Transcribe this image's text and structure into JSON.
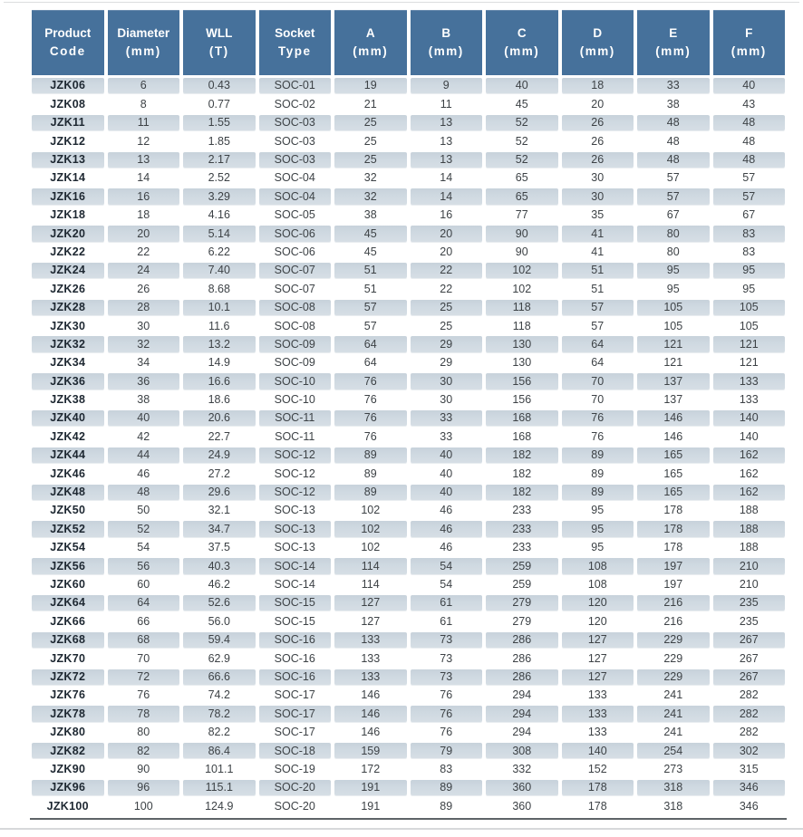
{
  "colors": {
    "header_bg": "#46719b",
    "header_text": "#ffffff",
    "row_shaded": "#cfd9e1",
    "body_text": "#3d4246",
    "code_text": "#1d2731"
  },
  "table": {
    "column_keys": [
      "product_code",
      "diameter",
      "wll",
      "socket_type",
      "a",
      "b",
      "c",
      "d",
      "e",
      "f"
    ],
    "columns": [
      {
        "line1": "Product",
        "line2": "Code"
      },
      {
        "line1": "Diameter",
        "line2": "(mm)"
      },
      {
        "line1": "WLL",
        "line2": "(T)"
      },
      {
        "line1": "Socket",
        "line2": "Type"
      },
      {
        "line1": "A",
        "line2": "(mm)"
      },
      {
        "line1": "B",
        "line2": "(mm)"
      },
      {
        "line1": "C",
        "line2": "(mm)"
      },
      {
        "line1": "D",
        "line2": "(mm)"
      },
      {
        "line1": "E",
        "line2": "(mm)"
      },
      {
        "line1": "F",
        "line2": "(mm)"
      }
    ],
    "rows": [
      [
        "JZK06",
        "6",
        "0.43",
        "SOC-01",
        "19",
        "9",
        "40",
        "18",
        "33",
        "40"
      ],
      [
        "JZK08",
        "8",
        "0.77",
        "SOC-02",
        "21",
        "11",
        "45",
        "20",
        "38",
        "43"
      ],
      [
        "JZK11",
        "11",
        "1.55",
        "SOC-03",
        "25",
        "13",
        "52",
        "26",
        "48",
        "48"
      ],
      [
        "JZK12",
        "12",
        "1.85",
        "SOC-03",
        "25",
        "13",
        "52",
        "26",
        "48",
        "48"
      ],
      [
        "JZK13",
        "13",
        "2.17",
        "SOC-03",
        "25",
        "13",
        "52",
        "26",
        "48",
        "48"
      ],
      [
        "JZK14",
        "14",
        "2.52",
        "SOC-04",
        "32",
        "14",
        "65",
        "30",
        "57",
        "57"
      ],
      [
        "JZK16",
        "16",
        "3.29",
        "SOC-04",
        "32",
        "14",
        "65",
        "30",
        "57",
        "57"
      ],
      [
        "JZK18",
        "18",
        "4.16",
        "SOC-05",
        "38",
        "16",
        "77",
        "35",
        "67",
        "67"
      ],
      [
        "JZK20",
        "20",
        "5.14",
        "SOC-06",
        "45",
        "20",
        "90",
        "41",
        "80",
        "83"
      ],
      [
        "JZK22",
        "22",
        "6.22",
        "SOC-06",
        "45",
        "20",
        "90",
        "41",
        "80",
        "83"
      ],
      [
        "JZK24",
        "24",
        "7.40",
        "SOC-07",
        "51",
        "22",
        "102",
        "51",
        "95",
        "95"
      ],
      [
        "JZK26",
        "26",
        "8.68",
        "SOC-07",
        "51",
        "22",
        "102",
        "51",
        "95",
        "95"
      ],
      [
        "JZK28",
        "28",
        "10.1",
        "SOC-08",
        "57",
        "25",
        "118",
        "57",
        "105",
        "105"
      ],
      [
        "JZK30",
        "30",
        "11.6",
        "SOC-08",
        "57",
        "25",
        "118",
        "57",
        "105",
        "105"
      ],
      [
        "JZK32",
        "32",
        "13.2",
        "SOC-09",
        "64",
        "29",
        "130",
        "64",
        "121",
        "121"
      ],
      [
        "JZK34",
        "34",
        "14.9",
        "SOC-09",
        "64",
        "29",
        "130",
        "64",
        "121",
        "121"
      ],
      [
        "JZK36",
        "36",
        "16.6",
        "SOC-10",
        "76",
        "30",
        "156",
        "70",
        "137",
        "133"
      ],
      [
        "JZK38",
        "38",
        "18.6",
        "SOC-10",
        "76",
        "30",
        "156",
        "70",
        "137",
        "133"
      ],
      [
        "JZK40",
        "40",
        "20.6",
        "SOC-11",
        "76",
        "33",
        "168",
        "76",
        "146",
        "140"
      ],
      [
        "JZK42",
        "42",
        "22.7",
        "SOC-11",
        "76",
        "33",
        "168",
        "76",
        "146",
        "140"
      ],
      [
        "JZK44",
        "44",
        "24.9",
        "SOC-12",
        "89",
        "40",
        "182",
        "89",
        "165",
        "162"
      ],
      [
        "JZK46",
        "46",
        "27.2",
        "SOC-12",
        "89",
        "40",
        "182",
        "89",
        "165",
        "162"
      ],
      [
        "JZK48",
        "48",
        "29.6",
        "SOC-12",
        "89",
        "40",
        "182",
        "89",
        "165",
        "162"
      ],
      [
        "JZK50",
        "50",
        "32.1",
        "SOC-13",
        "102",
        "46",
        "233",
        "95",
        "178",
        "188"
      ],
      [
        "JZK52",
        "52",
        "34.7",
        "SOC-13",
        "102",
        "46",
        "233",
        "95",
        "178",
        "188"
      ],
      [
        "JZK54",
        "54",
        "37.5",
        "SOC-13",
        "102",
        "46",
        "233",
        "95",
        "178",
        "188"
      ],
      [
        "JZK56",
        "56",
        "40.3",
        "SOC-14",
        "114",
        "54",
        "259",
        "108",
        "197",
        "210"
      ],
      [
        "JZK60",
        "60",
        "46.2",
        "SOC-14",
        "114",
        "54",
        "259",
        "108",
        "197",
        "210"
      ],
      [
        "JZK64",
        "64",
        "52.6",
        "SOC-15",
        "127",
        "61",
        "279",
        "120",
        "216",
        "235"
      ],
      [
        "JZK66",
        "66",
        "56.0",
        "SOC-15",
        "127",
        "61",
        "279",
        "120",
        "216",
        "235"
      ],
      [
        "JZK68",
        "68",
        "59.4",
        "SOC-16",
        "133",
        "73",
        "286",
        "127",
        "229",
        "267"
      ],
      [
        "JZK70",
        "70",
        "62.9",
        "SOC-16",
        "133",
        "73",
        "286",
        "127",
        "229",
        "267"
      ],
      [
        "JZK72",
        "72",
        "66.6",
        "SOC-16",
        "133",
        "73",
        "286",
        "127",
        "229",
        "267"
      ],
      [
        "JZK76",
        "76",
        "74.2",
        "SOC-17",
        "146",
        "76",
        "294",
        "133",
        "241",
        "282"
      ],
      [
        "JZK78",
        "78",
        "78.2",
        "SOC-17",
        "146",
        "76",
        "294",
        "133",
        "241",
        "282"
      ],
      [
        "JZK80",
        "80",
        "82.2",
        "SOC-17",
        "146",
        "76",
        "294",
        "133",
        "241",
        "282"
      ],
      [
        "JZK82",
        "82",
        "86.4",
        "SOC-18",
        "159",
        "79",
        "308",
        "140",
        "254",
        "302"
      ],
      [
        "JZK90",
        "90",
        "101.1",
        "SOC-19",
        "172",
        "83",
        "332",
        "152",
        "273",
        "315"
      ],
      [
        "JZK96",
        "96",
        "115.1",
        "SOC-20",
        "191",
        "89",
        "360",
        "178",
        "318",
        "346"
      ],
      [
        "JZK100",
        "100",
        "124.9",
        "SOC-20",
        "191",
        "89",
        "360",
        "178",
        "318",
        "346"
      ]
    ]
  }
}
